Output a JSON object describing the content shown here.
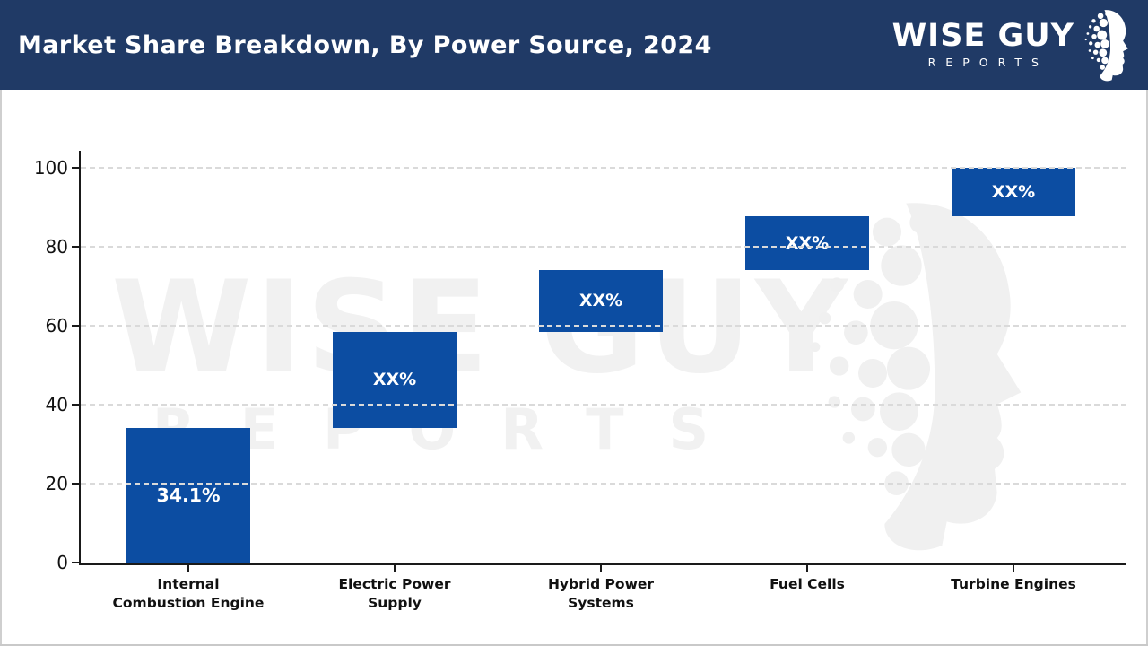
{
  "header": {
    "title": "Market Share Breakdown, By Power Source, 2024",
    "logo": {
      "wordmark": "WISE GUY",
      "subtext": "REPORTS"
    }
  },
  "watermark": {
    "wordmark": "WISE GUY",
    "subtext": "REPORTS"
  },
  "colors": {
    "header_bg": "#203a66",
    "bar": "#0c4da2",
    "bar_label": "#ffffff",
    "axis": "#1a1a1a",
    "grid": "#dadada",
    "watermark": "#f0f0f0",
    "page_border": "#c9c9c9"
  },
  "chart_data": {
    "type": "bar",
    "subtype": "waterfall",
    "title": "Market Share Breakdown, By Power Source, 2024",
    "categories": [
      "Internal Combustion Engine",
      "Electric Power Supply",
      "Hybrid Power Systems",
      "Fuel Cells",
      "Turbine Engines"
    ],
    "categories_display": [
      [
        "Internal",
        "Combustion Engine"
      ],
      [
        "Electric Power",
        "Supply"
      ],
      [
        "Hybrid Power",
        "Systems"
      ],
      [
        "Fuel Cells"
      ],
      [
        "Turbine Engines"
      ]
    ],
    "segments": [
      {
        "category": "Internal Combustion Engine",
        "label": "34.1%",
        "start": 0,
        "end": 34.1
      },
      {
        "category": "Electric Power Supply",
        "label": "XX%",
        "start": 34.1,
        "end": 58.4
      },
      {
        "category": "Hybrid Power Systems",
        "label": "XX%",
        "start": 58.4,
        "end": 74.1
      },
      {
        "category": "Fuel Cells",
        "label": "XX%",
        "start": 74.1,
        "end": 87.7
      },
      {
        "category": "Turbine Engines",
        "label": "XX%",
        "start": 87.7,
        "end": 100
      }
    ],
    "deltas": [
      34.1,
      24.3,
      15.7,
      13.6,
      12.3
    ],
    "y_ticks": [
      0,
      20,
      40,
      60,
      80,
      100
    ],
    "ylim": [
      0,
      100
    ],
    "xlabel": "",
    "ylabel": "",
    "grid": "horizontal-dashed",
    "legend": "none"
  }
}
